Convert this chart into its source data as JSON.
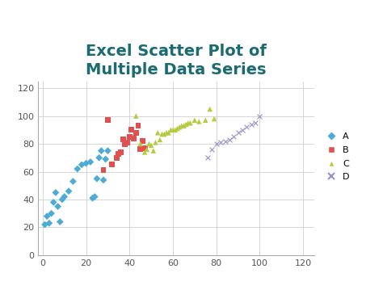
{
  "title": "Excel Scatter Plot of\nMultiple Data Series",
  "title_color": "#1a6b72",
  "title_fontsize": 14,
  "xlim": [
    -2,
    125
  ],
  "ylim": [
    0,
    125
  ],
  "xticks": [
    0,
    20,
    40,
    60,
    80,
    100,
    120
  ],
  "yticks": [
    0,
    20,
    40,
    60,
    80,
    100,
    120
  ],
  "background_color": "#ffffff",
  "grid_color": "#d0d0d0",
  "series_A": {
    "x": [
      1,
      2,
      3,
      4,
      5,
      6,
      7,
      8,
      9,
      10,
      12,
      14,
      16,
      18,
      20,
      22,
      23,
      24,
      25,
      26,
      27,
      28,
      29,
      30
    ],
    "y": [
      22,
      28,
      23,
      30,
      38,
      45,
      35,
      24,
      40,
      42,
      46,
      53,
      62,
      65,
      66,
      67,
      41,
      42,
      55,
      70,
      75,
      54,
      69,
      75
    ],
    "color": "#4bacd6",
    "marker": "D",
    "markersize": 20,
    "label": "A"
  },
  "series_B": {
    "x": [
      28,
      30,
      32,
      34,
      35,
      36,
      37,
      38,
      39,
      40,
      41,
      42,
      43,
      44,
      45,
      46,
      47
    ],
    "y": [
      61,
      97,
      65,
      70,
      73,
      74,
      83,
      80,
      81,
      85,
      90,
      84,
      88,
      93,
      76,
      82,
      77
    ],
    "color": "#e05050",
    "marker": "s",
    "markersize": 25,
    "label": "B"
  },
  "series_C": {
    "x": [
      43,
      45,
      47,
      48,
      49,
      50,
      51,
      52,
      53,
      54,
      55,
      56,
      57,
      58,
      59,
      60,
      61,
      62,
      63,
      64,
      65,
      66,
      67,
      68,
      70,
      72,
      75,
      77,
      79
    ],
    "y": [
      100,
      80,
      74,
      76,
      80,
      79,
      75,
      81,
      88,
      83,
      87,
      87,
      88,
      88,
      90,
      90,
      90,
      91,
      92,
      93,
      93,
      94,
      95,
      95,
      97,
      96,
      97,
      105,
      98
    ],
    "color": "#b5cc40",
    "marker": "^",
    "markersize": 22,
    "label": "C"
  },
  "series_D": {
    "x": [
      76,
      78,
      80,
      82,
      84,
      86,
      88,
      90,
      92,
      94,
      96,
      98,
      100
    ],
    "y": [
      70,
      76,
      80,
      81,
      82,
      83,
      85,
      88,
      90,
      92,
      94,
      95,
      100
    ],
    "color": "#9b8ec4",
    "marker": "x",
    "markersize": 18,
    "label": "D"
  },
  "legend_marker_sizes": {
    "A": 6,
    "B": 6,
    "C": 6,
    "D": 6
  }
}
